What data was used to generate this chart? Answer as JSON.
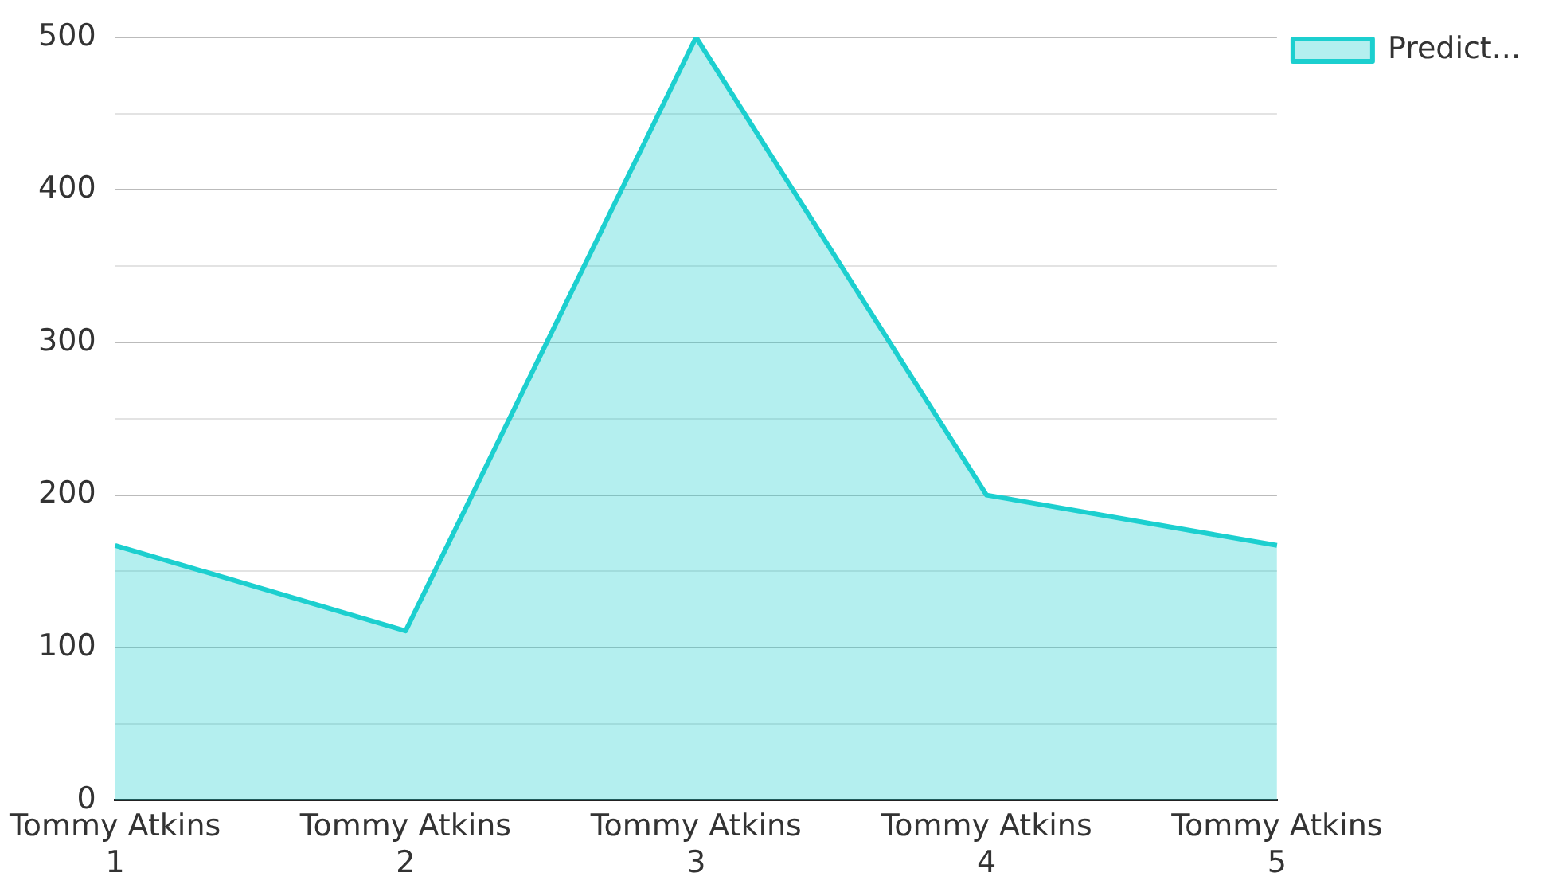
{
  "chart_data": {
    "type": "area",
    "categories": [
      "Tommy Atkins 1",
      "Tommy Atkins 2",
      "Tommy Atkins 3",
      "Tommy Atkins 4",
      "Tommy Atkins 5"
    ],
    "series": [
      {
        "name": "Predict...",
        "color": "#1ccfcf",
        "values": [
          167,
          111,
          500,
          200,
          167
        ]
      }
    ],
    "ylim": [
      0,
      500
    ],
    "yticks": [
      0,
      {
        "value": 50,
        "label": null
      },
      100,
      {
        "value": 150,
        "label": null
      },
      200,
      {
        "value": 250,
        "label": null
      },
      300,
      {
        "value": 350,
        "label": null
      },
      400,
      {
        "value": 450,
        "label": null
      },
      500
    ],
    "grid": "y",
    "legend": "top right"
  }
}
